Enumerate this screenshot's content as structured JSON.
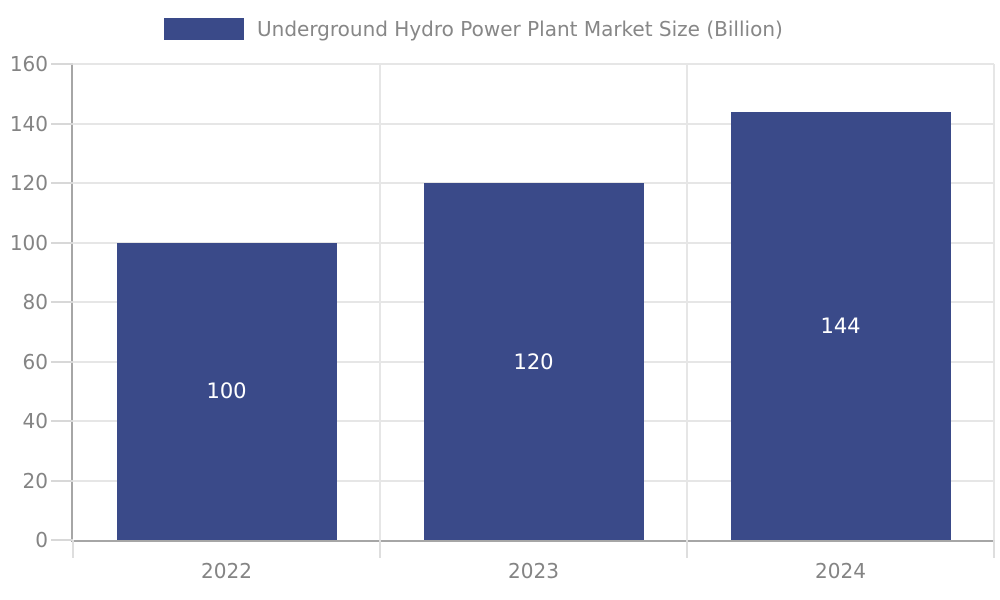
{
  "legend": {
    "label": "Underground Hydro Power Plant Market Size (Billion)"
  },
  "colors": {
    "bar": "#3a4a89",
    "axis_line": "#a6a6a6",
    "grid_line": "#e6e6e6",
    "tick": "#d8d8d8",
    "label_text": "#848484",
    "bar_label_text": "#ffffff"
  },
  "chart_data": {
    "type": "bar",
    "title": "Underground Hydro Power Plant Market Size (Billion)",
    "categories": [
      "2022",
      "2023",
      "2024"
    ],
    "values": [
      100,
      120,
      144
    ],
    "series": [
      {
        "name": "Underground Hydro Power Plant Market Size (Billion)",
        "values": [
          100,
          120,
          144
        ]
      }
    ],
    "xlabel": "",
    "ylabel": "",
    "ylim": [
      0,
      160
    ],
    "yticks": [
      0,
      20,
      40,
      60,
      80,
      100,
      120,
      140,
      160
    ],
    "grid": true,
    "legend_position": "top",
    "bar_label_position": "inside-center",
    "bar_labels": [
      "100",
      "120",
      "144"
    ]
  }
}
